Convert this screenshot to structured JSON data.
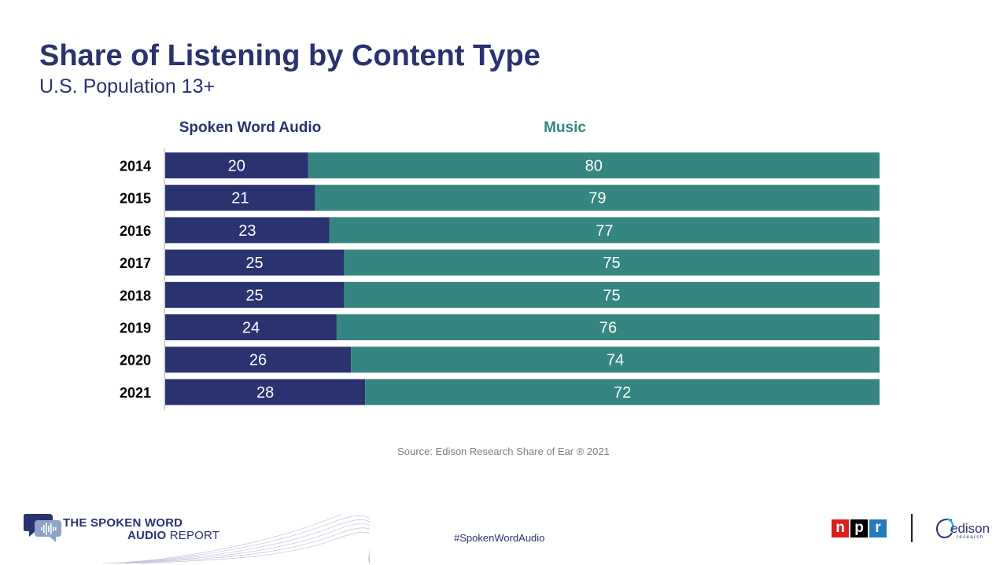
{
  "title": "Share of Listening by Content Type",
  "subtitle": "U.S. Population 13+",
  "chart_data": {
    "type": "bar",
    "orientation": "horizontal",
    "stacked": true,
    "categories": [
      "2014",
      "2015",
      "2016",
      "2017",
      "2018",
      "2019",
      "2020",
      "2021"
    ],
    "series": [
      {
        "name": "Spoken Word Audio",
        "color": "#2b3270",
        "values": [
          20,
          21,
          23,
          25,
          25,
          24,
          26,
          28
        ]
      },
      {
        "name": "Music",
        "color": "#358580",
        "values": [
          80,
          79,
          77,
          75,
          75,
          76,
          74,
          72
        ]
      }
    ],
    "xlim": [
      0,
      100
    ],
    "legend_placement": "top",
    "grid": false
  },
  "source": "Source: Edison Research Share of Ear ® 2021",
  "footer": {
    "brand_line1_bold": "THE SPOKEN WORD",
    "brand_line2_bold": "AUDIO",
    "brand_line2_thin": "REPORT",
    "hashtag": "#SpokenWordAudio",
    "npr_letters": [
      "n",
      "p",
      "r"
    ],
    "edison_word": "edison",
    "edison_sub": "research",
    "icons": [
      "speech-bubble-icon",
      "sound-wave-icon",
      "edison-swirl-icon"
    ]
  }
}
